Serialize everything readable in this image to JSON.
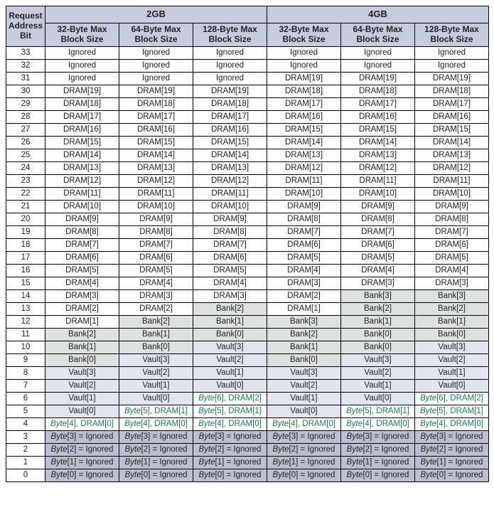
{
  "headers": {
    "request_bit": "Request\nAddress\nBit",
    "group_2gb": "2GB",
    "group_4gb": "4GB",
    "col32": "32-Byte Max\nBlock Size",
    "col64": "64-Byte Max\nBlock Size",
    "col128": "128-Byte Max\nBlock Size"
  },
  "styles": {
    "header_bg": "#c8cade",
    "bank_bg": "#dfe0e0",
    "vault_bg": "#e3e4ed",
    "byte_bg": "#bebed0",
    "green_fg": "#1f7a50"
  },
  "phrases": {
    "ignored": "Ignored",
    "dram": "DRAM",
    "bank": "Bank",
    "vault": "Vault",
    "byte": "Byte",
    "eq_ignored": " = Ignored"
  },
  "columns": [
    {
      "key": "g2_32",
      "group": "2GB",
      "max_bytes": 32
    },
    {
      "key": "g2_64",
      "group": "2GB",
      "max_bytes": 64
    },
    {
      "key": "g2_128",
      "group": "2GB",
      "max_bytes": 128
    },
    {
      "key": "g4_32",
      "group": "4GB",
      "max_bytes": 32
    },
    {
      "key": "g4_64",
      "group": "4GB",
      "max_bytes": 64
    },
    {
      "key": "g4_128",
      "group": "4GB",
      "max_bytes": 128
    }
  ],
  "rows": [
    {
      "bit": 33,
      "cells": [
        {
          "t": "ign"
        },
        {
          "t": "ign"
        },
        {
          "t": "ign"
        },
        {
          "t": "ign"
        },
        {
          "t": "ign"
        },
        {
          "t": "ign"
        }
      ]
    },
    {
      "bit": 32,
      "cells": [
        {
          "t": "ign"
        },
        {
          "t": "ign"
        },
        {
          "t": "ign"
        },
        {
          "t": "ign"
        },
        {
          "t": "ign"
        },
        {
          "t": "ign"
        }
      ]
    },
    {
      "bit": 31,
      "cells": [
        {
          "t": "ign"
        },
        {
          "t": "ign"
        },
        {
          "t": "ign"
        },
        {
          "t": "dram",
          "i": 19
        },
        {
          "t": "dram",
          "i": 19
        },
        {
          "t": "dram",
          "i": 19
        }
      ]
    },
    {
      "bit": 30,
      "cells": [
        {
          "t": "dram",
          "i": 19
        },
        {
          "t": "dram",
          "i": 19
        },
        {
          "t": "dram",
          "i": 19
        },
        {
          "t": "dram",
          "i": 18
        },
        {
          "t": "dram",
          "i": 18
        },
        {
          "t": "dram",
          "i": 18
        }
      ]
    },
    {
      "bit": 29,
      "cells": [
        {
          "t": "dram",
          "i": 18
        },
        {
          "t": "dram",
          "i": 18
        },
        {
          "t": "dram",
          "i": 18
        },
        {
          "t": "dram",
          "i": 17
        },
        {
          "t": "dram",
          "i": 17
        },
        {
          "t": "dram",
          "i": 17
        }
      ]
    },
    {
      "bit": 28,
      "cells": [
        {
          "t": "dram",
          "i": 17
        },
        {
          "t": "dram",
          "i": 17
        },
        {
          "t": "dram",
          "i": 17
        },
        {
          "t": "dram",
          "i": 16
        },
        {
          "t": "dram",
          "i": 16
        },
        {
          "t": "dram",
          "i": 16
        }
      ]
    },
    {
      "bit": 27,
      "cells": [
        {
          "t": "dram",
          "i": 16
        },
        {
          "t": "dram",
          "i": 16
        },
        {
          "t": "dram",
          "i": 16
        },
        {
          "t": "dram",
          "i": 15
        },
        {
          "t": "dram",
          "i": 15
        },
        {
          "t": "dram",
          "i": 15
        }
      ]
    },
    {
      "bit": 26,
      "cells": [
        {
          "t": "dram",
          "i": 15
        },
        {
          "t": "dram",
          "i": 15
        },
        {
          "t": "dram",
          "i": 15
        },
        {
          "t": "dram",
          "i": 14
        },
        {
          "t": "dram",
          "i": 14
        },
        {
          "t": "dram",
          "i": 14
        }
      ]
    },
    {
      "bit": 25,
      "cells": [
        {
          "t": "dram",
          "i": 14
        },
        {
          "t": "dram",
          "i": 14
        },
        {
          "t": "dram",
          "i": 14
        },
        {
          "t": "dram",
          "i": 13
        },
        {
          "t": "dram",
          "i": 13
        },
        {
          "t": "dram",
          "i": 13
        }
      ]
    },
    {
      "bit": 24,
      "cells": [
        {
          "t": "dram",
          "i": 13
        },
        {
          "t": "dram",
          "i": 13
        },
        {
          "t": "dram",
          "i": 13
        },
        {
          "t": "dram",
          "i": 12
        },
        {
          "t": "dram",
          "i": 12
        },
        {
          "t": "dram",
          "i": 12
        }
      ]
    },
    {
      "bit": 23,
      "cells": [
        {
          "t": "dram",
          "i": 12
        },
        {
          "t": "dram",
          "i": 12
        },
        {
          "t": "dram",
          "i": 12
        },
        {
          "t": "dram",
          "i": 11
        },
        {
          "t": "dram",
          "i": 11
        },
        {
          "t": "dram",
          "i": 11
        }
      ]
    },
    {
      "bit": 22,
      "cells": [
        {
          "t": "dram",
          "i": 11
        },
        {
          "t": "dram",
          "i": 11
        },
        {
          "t": "dram",
          "i": 11
        },
        {
          "t": "dram",
          "i": 10
        },
        {
          "t": "dram",
          "i": 10
        },
        {
          "t": "dram",
          "i": 10
        }
      ]
    },
    {
      "bit": 21,
      "cells": [
        {
          "t": "dram",
          "i": 10
        },
        {
          "t": "dram",
          "i": 10
        },
        {
          "t": "dram",
          "i": 10
        },
        {
          "t": "dram",
          "i": 9
        },
        {
          "t": "dram",
          "i": 9
        },
        {
          "t": "dram",
          "i": 9
        }
      ]
    },
    {
      "bit": 20,
      "cells": [
        {
          "t": "dram",
          "i": 9
        },
        {
          "t": "dram",
          "i": 9
        },
        {
          "t": "dram",
          "i": 9
        },
        {
          "t": "dram",
          "i": 8
        },
        {
          "t": "dram",
          "i": 8
        },
        {
          "t": "dram",
          "i": 8
        }
      ]
    },
    {
      "bit": 19,
      "cells": [
        {
          "t": "dram",
          "i": 8
        },
        {
          "t": "dram",
          "i": 8
        },
        {
          "t": "dram",
          "i": 8
        },
        {
          "t": "dram",
          "i": 7
        },
        {
          "t": "dram",
          "i": 7
        },
        {
          "t": "dram",
          "i": 7
        }
      ]
    },
    {
      "bit": 18,
      "cells": [
        {
          "t": "dram",
          "i": 7
        },
        {
          "t": "dram",
          "i": 7
        },
        {
          "t": "dram",
          "i": 7
        },
        {
          "t": "dram",
          "i": 6
        },
        {
          "t": "dram",
          "i": 6
        },
        {
          "t": "dram",
          "i": 6
        }
      ]
    },
    {
      "bit": 17,
      "cells": [
        {
          "t": "dram",
          "i": 6
        },
        {
          "t": "dram",
          "i": 6
        },
        {
          "t": "dram",
          "i": 6
        },
        {
          "t": "dram",
          "i": 5
        },
        {
          "t": "dram",
          "i": 5
        },
        {
          "t": "dram",
          "i": 5
        }
      ]
    },
    {
      "bit": 16,
      "cells": [
        {
          "t": "dram",
          "i": 5
        },
        {
          "t": "dram",
          "i": 5
        },
        {
          "t": "dram",
          "i": 5
        },
        {
          "t": "dram",
          "i": 4
        },
        {
          "t": "dram",
          "i": 4
        },
        {
          "t": "dram",
          "i": 4
        }
      ]
    },
    {
      "bit": 15,
      "cells": [
        {
          "t": "dram",
          "i": 4
        },
        {
          "t": "dram",
          "i": 4
        },
        {
          "t": "dram",
          "i": 4
        },
        {
          "t": "dram",
          "i": 3
        },
        {
          "t": "dram",
          "i": 3
        },
        {
          "t": "dram",
          "i": 3
        }
      ]
    },
    {
      "bit": 14,
      "cells": [
        {
          "t": "dram",
          "i": 3
        },
        {
          "t": "dram",
          "i": 3
        },
        {
          "t": "dram",
          "i": 3
        },
        {
          "t": "dram",
          "i": 2
        },
        {
          "t": "bank",
          "i": 3
        },
        {
          "t": "bank",
          "i": 3
        }
      ]
    },
    {
      "bit": 13,
      "cells": [
        {
          "t": "dram",
          "i": 2
        },
        {
          "t": "dram",
          "i": 2
        },
        {
          "t": "bank",
          "i": 2
        },
        {
          "t": "dram",
          "i": 1
        },
        {
          "t": "bank",
          "i": 2
        },
        {
          "t": "bank",
          "i": 2
        }
      ]
    },
    {
      "bit": 12,
      "cells": [
        {
          "t": "dram",
          "i": 1
        },
        {
          "t": "bank",
          "i": 2
        },
        {
          "t": "bank",
          "i": 1
        },
        {
          "t": "bank",
          "i": 3
        },
        {
          "t": "bank",
          "i": 1
        },
        {
          "t": "bank",
          "i": 1
        }
      ]
    },
    {
      "bit": 11,
      "cells": [
        {
          "t": "bank",
          "i": 2
        },
        {
          "t": "bank",
          "i": 1
        },
        {
          "t": "bank",
          "i": 0
        },
        {
          "t": "bank",
          "i": 2
        },
        {
          "t": "bank",
          "i": 0
        },
        {
          "t": "bank",
          "i": 0
        }
      ]
    },
    {
      "bit": 10,
      "cells": [
        {
          "t": "bank",
          "i": 1
        },
        {
          "t": "bank",
          "i": 0
        },
        {
          "t": "vault",
          "i": 3
        },
        {
          "t": "bank",
          "i": 1
        },
        {
          "t": "bank",
          "i": 0
        },
        {
          "t": "vault",
          "i": 3
        }
      ]
    },
    {
      "bit": 9,
      "cells": [
        {
          "t": "bank",
          "i": 0
        },
        {
          "t": "vault",
          "i": 3
        },
        {
          "t": "vault",
          "i": 2
        },
        {
          "t": "bank",
          "i": 0
        },
        {
          "t": "vault",
          "i": 3
        },
        {
          "t": "vault",
          "i": 2
        }
      ]
    },
    {
      "bit": 8,
      "cells": [
        {
          "t": "vault",
          "i": 3
        },
        {
          "t": "vault",
          "i": 2
        },
        {
          "t": "vault",
          "i": 1
        },
        {
          "t": "vault",
          "i": 3
        },
        {
          "t": "vault",
          "i": 2
        },
        {
          "t": "vault",
          "i": 1
        }
      ]
    },
    {
      "bit": 7,
      "cells": [
        {
          "t": "vault",
          "i": 2
        },
        {
          "t": "vault",
          "i": 1
        },
        {
          "t": "vault",
          "i": 0
        },
        {
          "t": "vault",
          "i": 2
        },
        {
          "t": "vault",
          "i": 1
        },
        {
          "t": "vault",
          "i": 0
        }
      ]
    },
    {
      "bit": 6,
      "cells": [
        {
          "t": "vault",
          "i": 1
        },
        {
          "t": "vault",
          "i": 0
        },
        {
          "t": "bytedram",
          "bi": 6,
          "di": 2
        },
        {
          "t": "vault",
          "i": 1
        },
        {
          "t": "vault",
          "i": 0
        },
        {
          "t": "bytedram",
          "bi": 6,
          "di": 2
        }
      ]
    },
    {
      "bit": 5,
      "cells": [
        {
          "t": "vault",
          "i": 0
        },
        {
          "t": "bytedram",
          "bi": 5,
          "di": 1
        },
        {
          "t": "bytedram",
          "bi": 5,
          "di": 1
        },
        {
          "t": "vault",
          "i": 0
        },
        {
          "t": "bytedram",
          "bi": 5,
          "di": 1
        },
        {
          "t": "bytedram",
          "bi": 5,
          "di": 1
        }
      ]
    },
    {
      "bit": 4,
      "cells": [
        {
          "t": "bytedram",
          "bi": 4,
          "di": 0
        },
        {
          "t": "bytedram",
          "bi": 4,
          "di": 0
        },
        {
          "t": "bytedram",
          "bi": 4,
          "di": 0
        },
        {
          "t": "bytedram",
          "bi": 4,
          "di": 0
        },
        {
          "t": "bytedram",
          "bi": 4,
          "di": 0
        },
        {
          "t": "bytedram",
          "bi": 4,
          "di": 0
        }
      ]
    },
    {
      "bit": 3,
      "cells": [
        {
          "t": "byteign",
          "i": 3
        },
        {
          "t": "byteign",
          "i": 3
        },
        {
          "t": "byteign",
          "i": 3
        },
        {
          "t": "byteign",
          "i": 3
        },
        {
          "t": "byteign",
          "i": 3
        },
        {
          "t": "byteign",
          "i": 3
        }
      ]
    },
    {
      "bit": 2,
      "cells": [
        {
          "t": "byteign",
          "i": 2
        },
        {
          "t": "byteign",
          "i": 2
        },
        {
          "t": "byteign",
          "i": 2
        },
        {
          "t": "byteign",
          "i": 2
        },
        {
          "t": "byteign",
          "i": 2
        },
        {
          "t": "byteign",
          "i": 2
        }
      ]
    },
    {
      "bit": 1,
      "cells": [
        {
          "t": "byteign",
          "i": 1
        },
        {
          "t": "byteign",
          "i": 1
        },
        {
          "t": "byteign",
          "i": 1
        },
        {
          "t": "byteign",
          "i": 1
        },
        {
          "t": "byteign",
          "i": 1
        },
        {
          "t": "byteign",
          "i": 1
        }
      ]
    },
    {
      "bit": 0,
      "cells": [
        {
          "t": "byteign",
          "i": 0
        },
        {
          "t": "byteign",
          "i": 0
        },
        {
          "t": "byteign",
          "i": 0
        },
        {
          "t": "byteign",
          "i": 0
        },
        {
          "t": "byteign",
          "i": 0
        },
        {
          "t": "byteign",
          "i": 0
        }
      ]
    }
  ]
}
